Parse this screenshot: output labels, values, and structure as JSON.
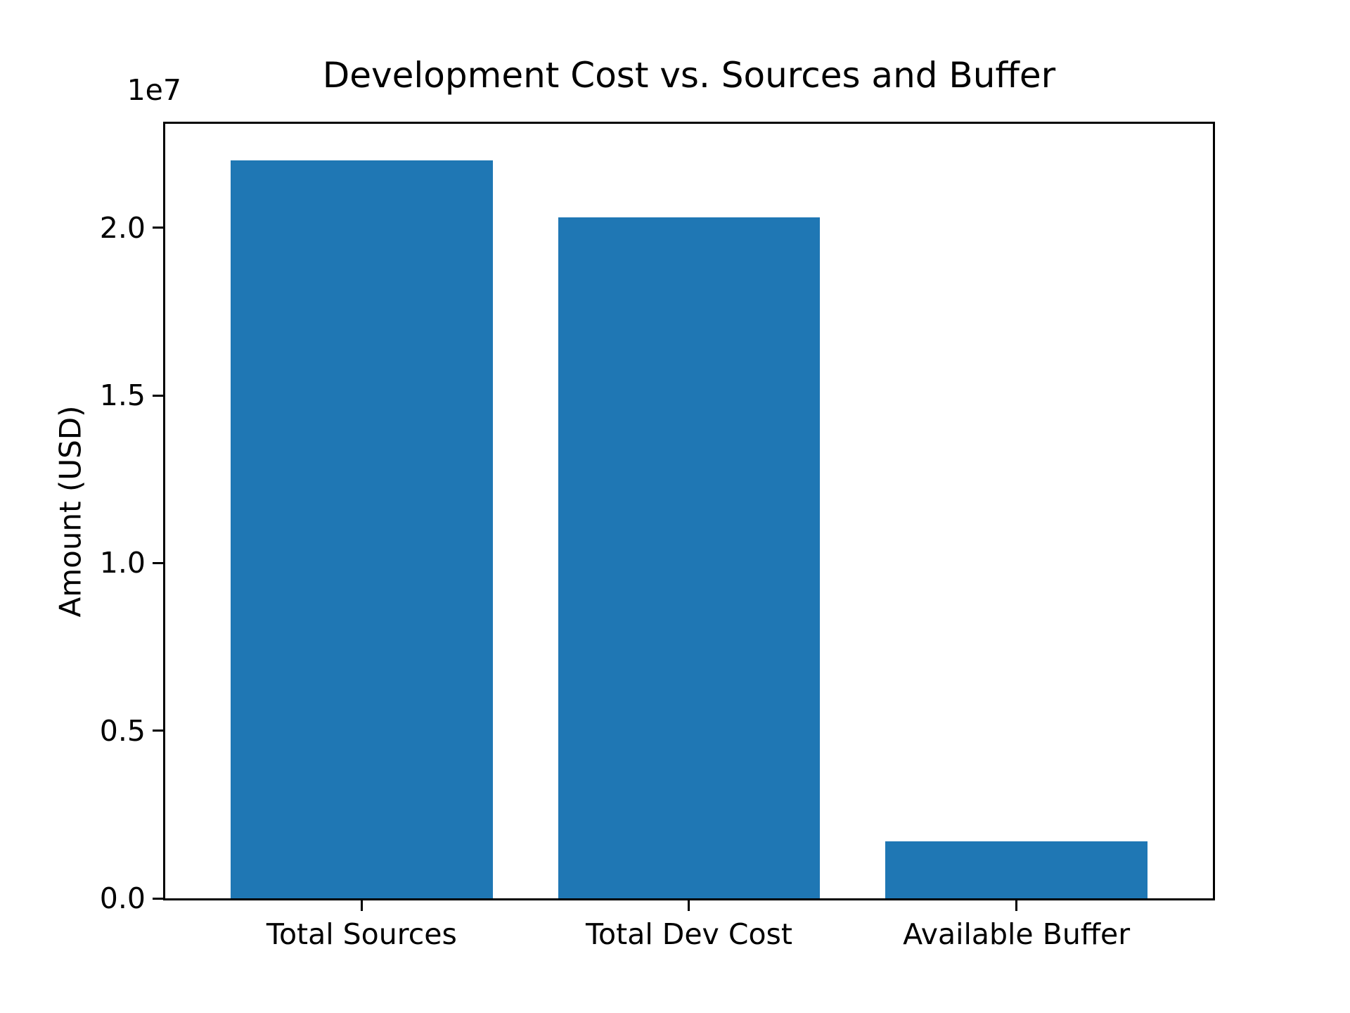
{
  "chart_data": {
    "type": "bar",
    "title": "Development Cost vs. Sources and Buffer",
    "categories": [
      "Total Sources",
      "Total Dev Cost",
      "Available Buffer"
    ],
    "values": [
      22000000,
      20300000,
      1700000
    ],
    "xlabel": "",
    "ylabel": "Amount (USD)",
    "ylim": [
      0,
      23100000
    ],
    "yticks": [
      0.0,
      0.5,
      1.0,
      1.5,
      2.0
    ],
    "ytick_labels": [
      "0.0",
      "0.5",
      "1.0",
      "1.5",
      "2.0"
    ],
    "y_multiplier": 10000000,
    "y_offset_text": "1e7",
    "bar_color": "#1f77b4",
    "bar_width_fraction": 0.8,
    "grid": false,
    "legend_position": "none",
    "background_color": "#ffffff",
    "axis_color": "#000000"
  }
}
